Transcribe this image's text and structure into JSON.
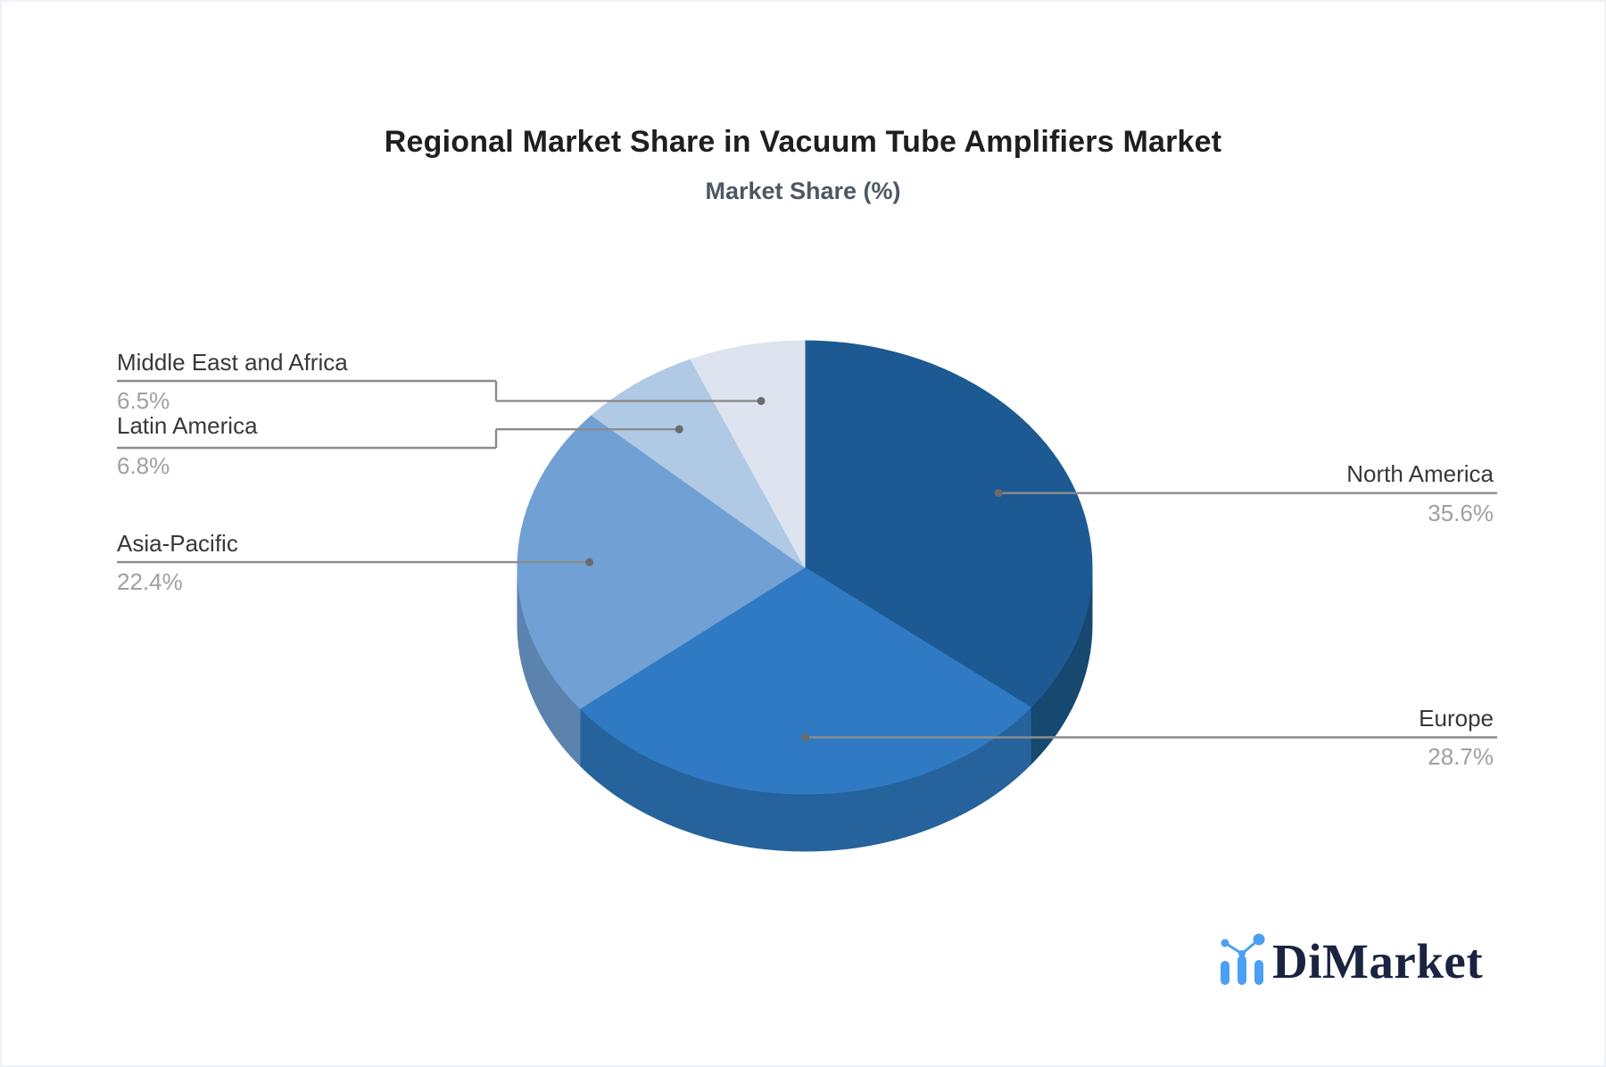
{
  "chart_data": {
    "type": "pie",
    "style": "3d",
    "title": "Regional Market Share in Vacuum Tube Amplifiers Market",
    "subtitle": "Market Share (%)",
    "unit": "%",
    "direction": "clockwise",
    "start_angle": "12-o'clock",
    "legend": "none",
    "slices": [
      {
        "name": "North America",
        "value": 35.6,
        "pct_label": "35.6%",
        "color": "#1D5A93",
        "side_color": "#164870"
      },
      {
        "name": "Europe",
        "value": 28.7,
        "pct_label": "28.7%",
        "color": "#2F7AC3",
        "side_color": "#26629C"
      },
      {
        "name": "Asia-Pacific",
        "value": 22.4,
        "pct_label": "22.4%",
        "color": "#70A0D4",
        "side_color": "#5B83AD"
      },
      {
        "name": "Latin America",
        "value": 6.8,
        "pct_label": "6.8%",
        "color": "#B0C9E4",
        "side_color": "#8FA9C4"
      },
      {
        "name": "Middle East and Africa",
        "value": 6.5,
        "pct_label": "6.5%",
        "color": "#DDE4EF",
        "side_color": "#B8C2D2"
      }
    ]
  },
  "palette": {
    "leader_line": "#8c8c8c",
    "dot": "#6b6b6b",
    "label_text": "#383838",
    "pct_text": "#9ea0a3",
    "title_text": "#1f1f1f",
    "subtitle_text": "#4e5862"
  },
  "branding": {
    "logo_text": "DiMarket",
    "logo_icon": "bar-line-chart-icon",
    "logo_blue": "#4AA0F2",
    "logo_navy": "#1a2440"
  }
}
